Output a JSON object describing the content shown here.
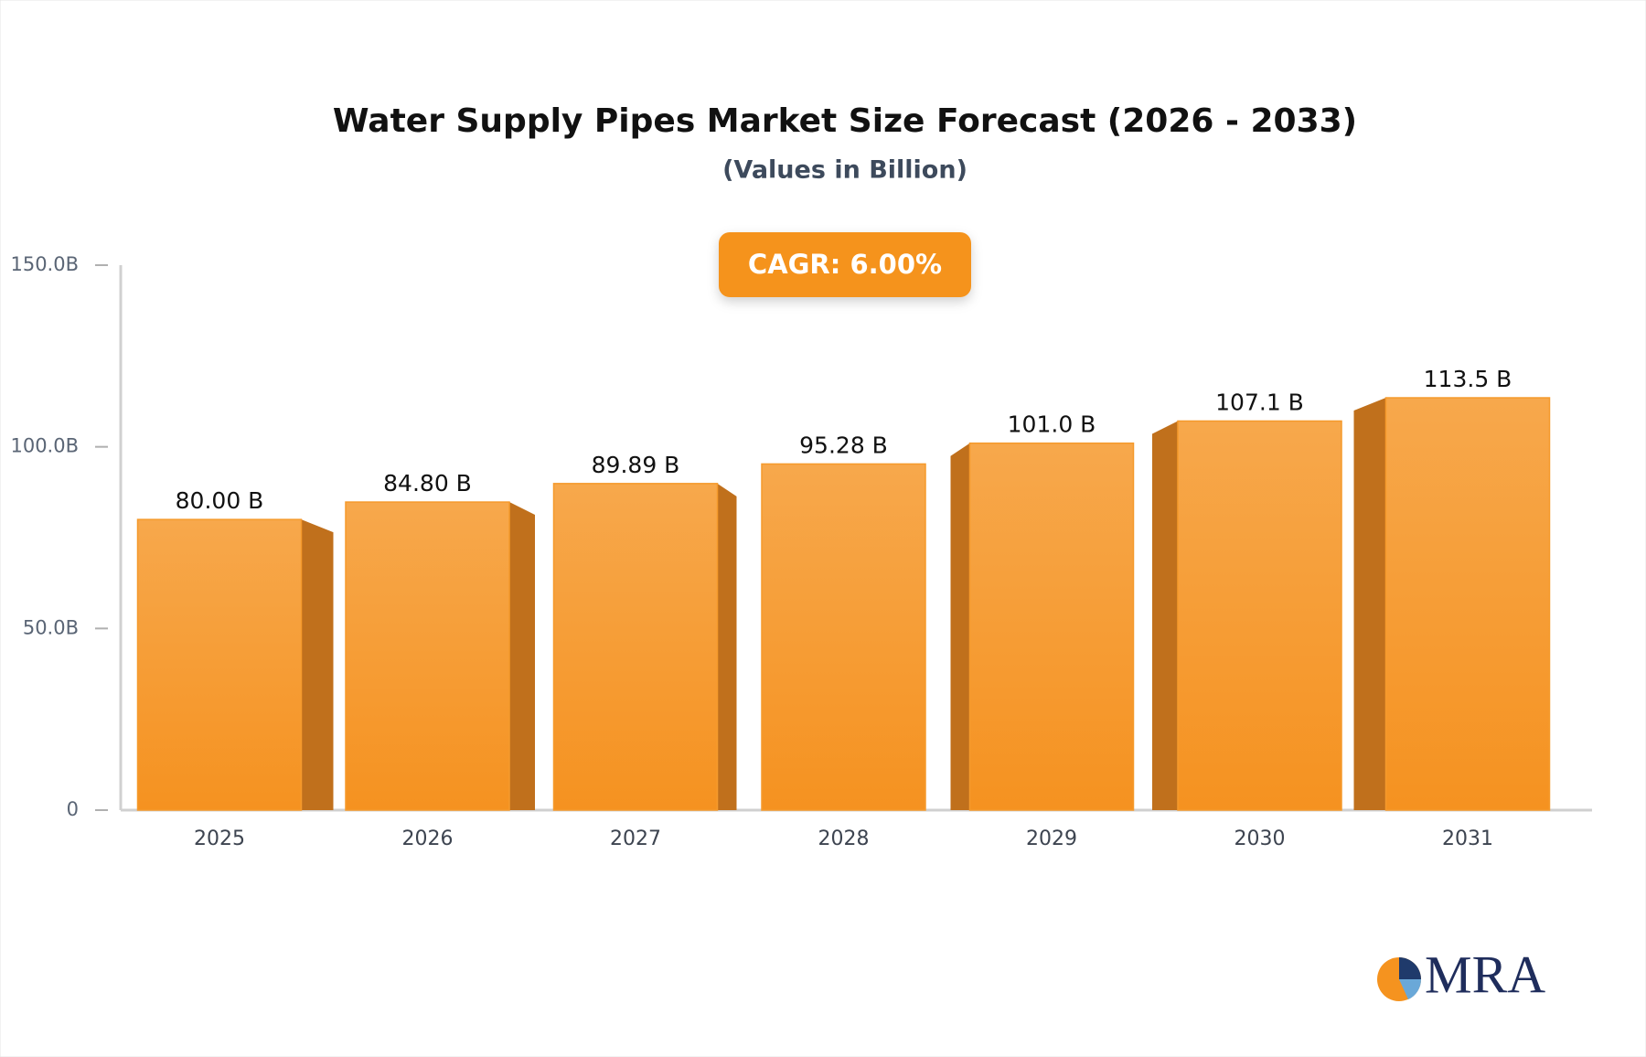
{
  "chart_data": {
    "type": "bar",
    "title": "Water Supply Pipes Market Size Forecast (2026 - 2033)",
    "subtitle": "(Values in Billion)",
    "annotation": "CAGR: 6.00%",
    "brand": "MRA",
    "categories": [
      "2025",
      "2026",
      "2027",
      "2028",
      "2029",
      "2030",
      "2031"
    ],
    "values": [
      80.0,
      84.8,
      89.89,
      95.28,
      101.0,
      107.1,
      113.5
    ],
    "value_labels": [
      "80.00 B",
      "84.80 B",
      "89.89 B",
      "95.28 B",
      "101.0 B",
      "107.1 B",
      "113.5 B"
    ],
    "color": "#f59a2c",
    "ylim": [
      0,
      150
    ],
    "yticks": [
      0,
      {
        "value": 50,
        "label": "50.0B"
      },
      {
        "value": 100,
        "label": "100.0B"
      },
      {
        "value": 150,
        "label": "150.0B"
      }
    ],
    "grid": false
  }
}
